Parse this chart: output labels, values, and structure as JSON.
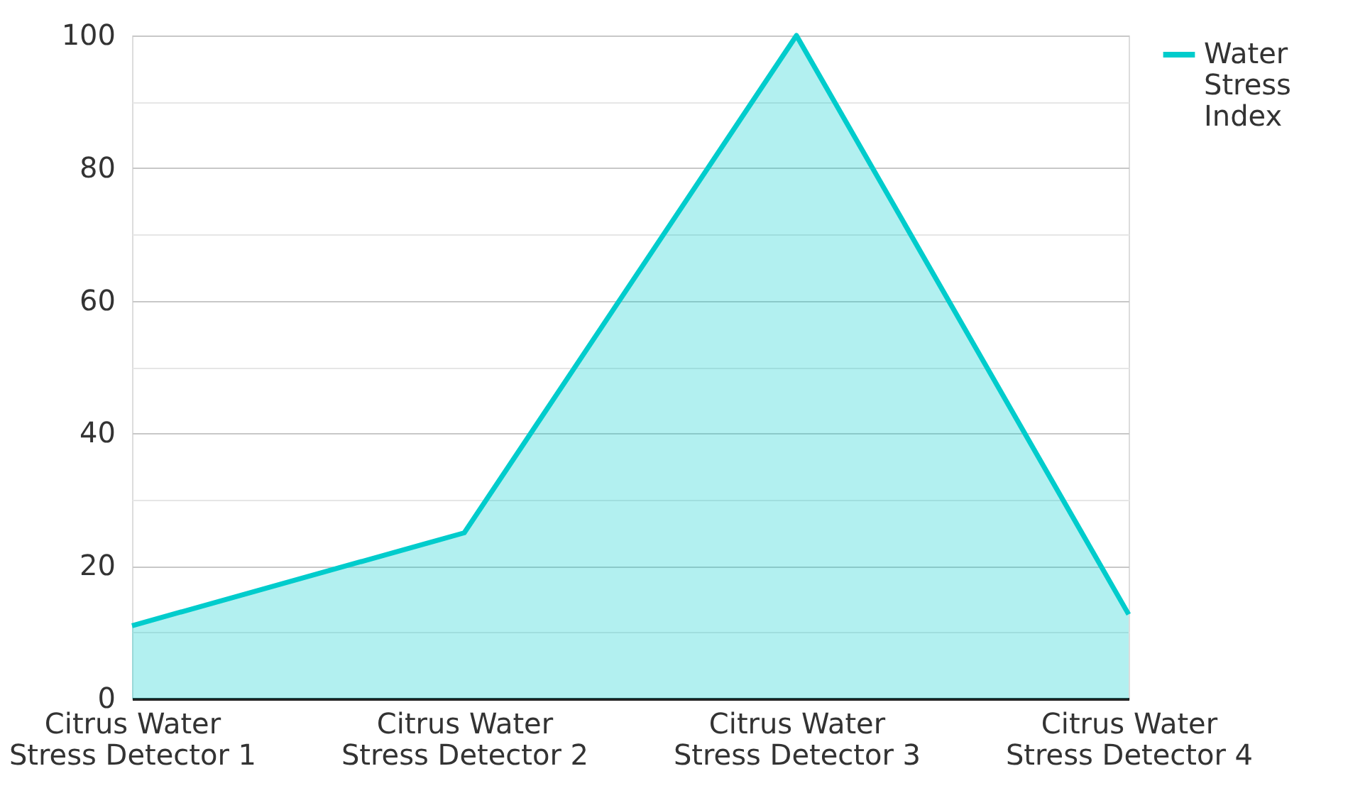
{
  "chart_data": {
    "type": "area",
    "categories": [
      "Citrus Water Stress Detector 1",
      "Citrus Water Stress Detector 2",
      "Citrus Water Stress Detector 3",
      "Citrus Water Stress Detector 4"
    ],
    "series": [
      {
        "name": "Water Stress Index",
        "color": "#00cccc",
        "values": [
          11,
          25,
          100,
          12.7
        ]
      }
    ],
    "ylim": [
      0,
      100
    ],
    "yticks": [
      0,
      {
        "value": 10,
        "label": null
      },
      20,
      {
        "value": 30,
        "label": null
      },
      40,
      {
        "value": 50,
        "label": null
      },
      60,
      {
        "value": 70,
        "label": null
      },
      80,
      {
        "value": 90,
        "label": null
      },
      100
    ],
    "grid": "y",
    "legend": "top right"
  }
}
